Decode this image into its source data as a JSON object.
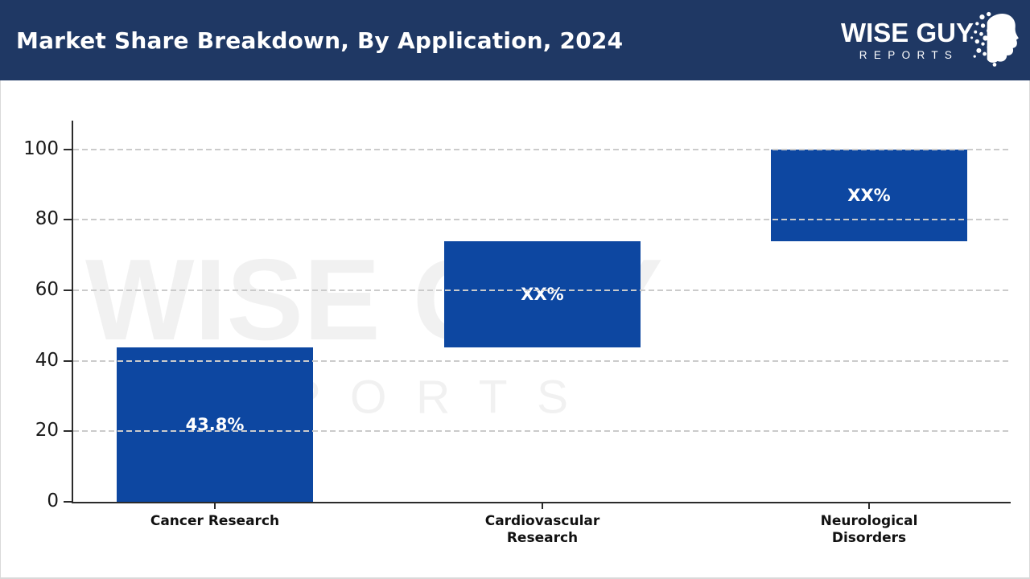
{
  "header": {
    "title": "Market Share Breakdown, By Application, 2024",
    "background_color": "#1f3864",
    "logo": {
      "wordmark": "WISE GUY",
      "subtext": "REPORTS"
    }
  },
  "watermark": {
    "wordmark": "WISE GUY",
    "subtext": "REPORTS"
  },
  "chart_data": {
    "type": "bar",
    "variant": "waterfall",
    "title": "Market Share Breakdown, By Application, 2024",
    "categories": [
      "Cancer Research",
      "Cardiovascular\nResearch",
      "Neurological\nDisorders"
    ],
    "bars": [
      {
        "category": "Cancer Research",
        "start": 0,
        "end": 43.8,
        "label": "43.8%"
      },
      {
        "category": "Cardiovascular Research",
        "start": 43.8,
        "end": 74,
        "label": "XX%"
      },
      {
        "category": "Neurological Disorders",
        "start": 74,
        "end": 100,
        "label": "XX%"
      }
    ],
    "yticks": [
      0,
      20,
      40,
      60,
      80,
      100
    ],
    "ylim": [
      0,
      100
    ],
    "xlabel": "",
    "ylabel": "",
    "bar_color": "#0d47a1",
    "grid": true,
    "grid_color": "#cbcbcb",
    "grid_style": "dashed",
    "legend": null
  }
}
